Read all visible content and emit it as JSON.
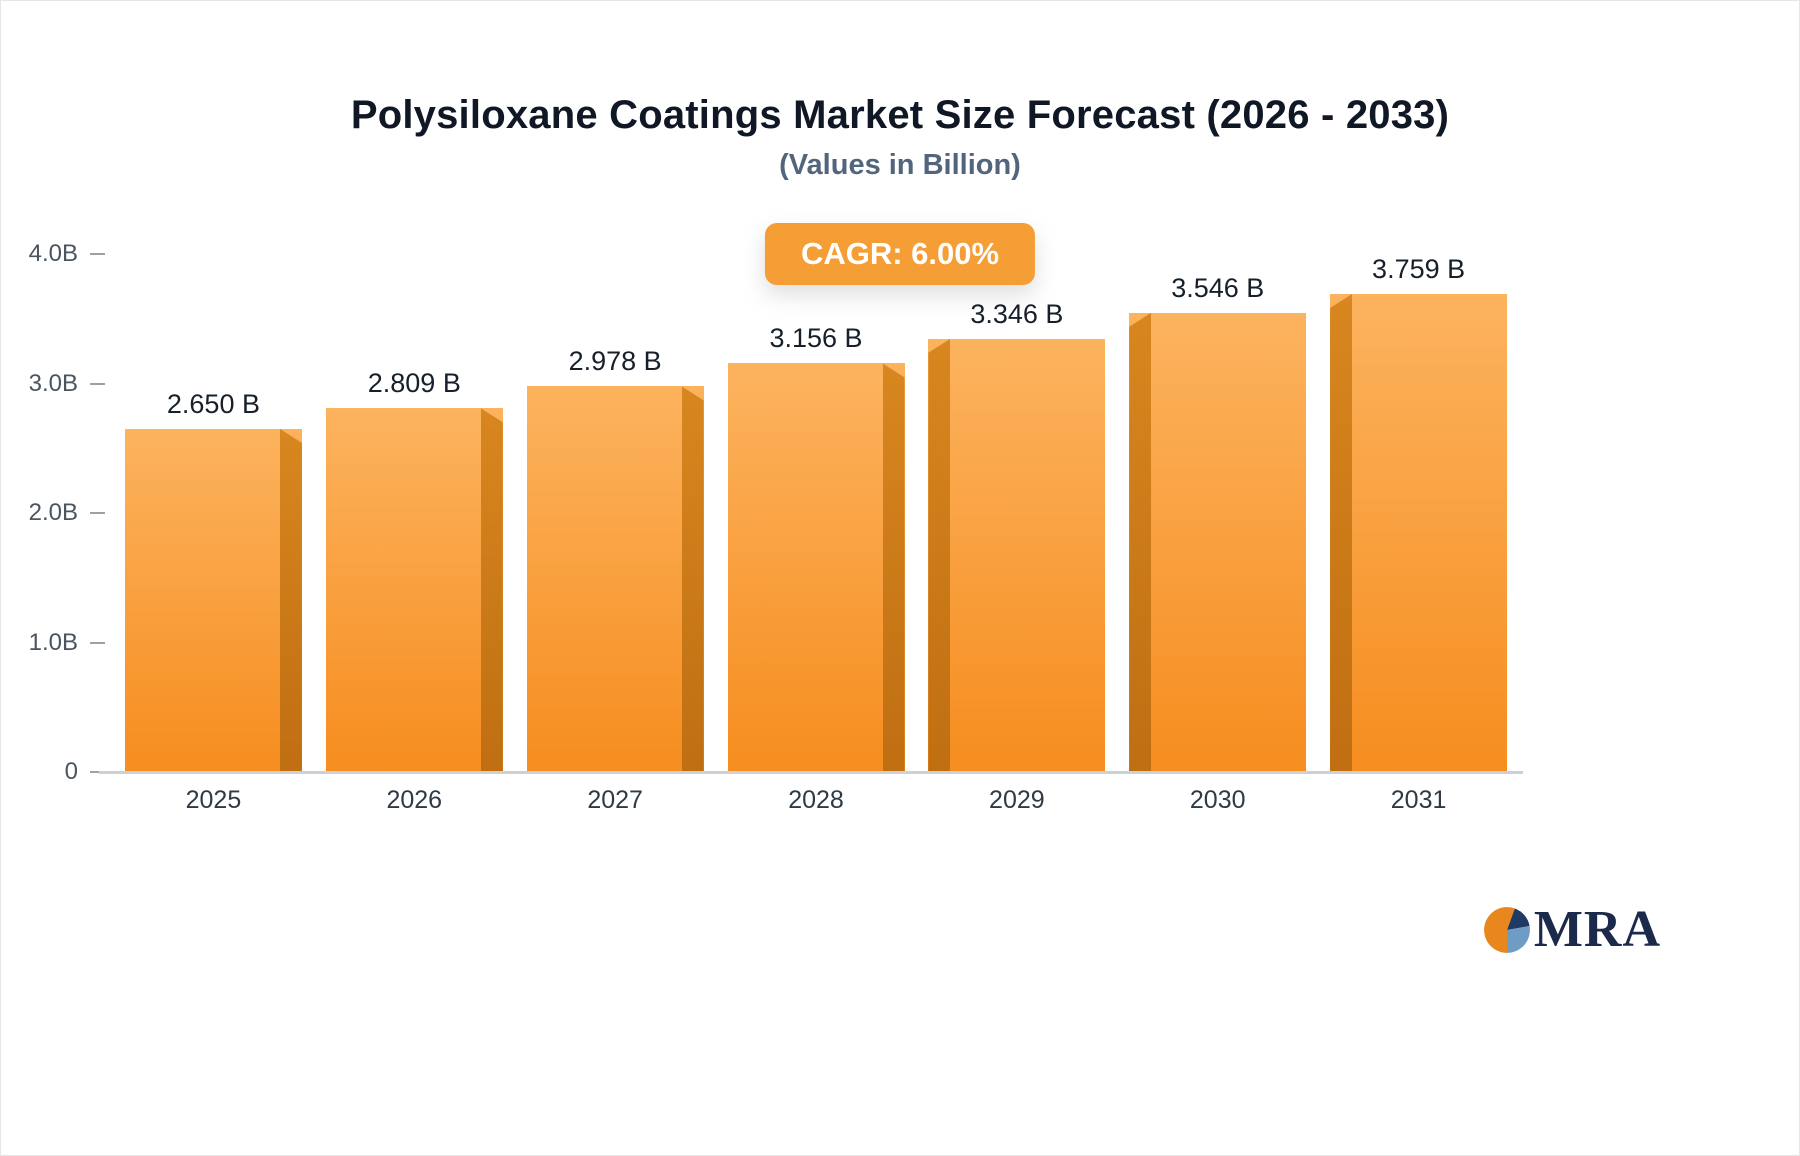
{
  "chart_data": {
    "type": "bar",
    "title": "Polysiloxane Coatings Market Size Forecast (2026 - 2033)",
    "subtitle": "(Values in Billion)",
    "cagr_label": "CAGR: 6.00%",
    "categories": [
      "2025",
      "2026",
      "2027",
      "2028",
      "2029",
      "2030",
      "2031"
    ],
    "values": [
      2.65,
      2.809,
      2.978,
      3.156,
      3.346,
      3.546,
      3.759
    ],
    "value_labels": [
      "2.650 B",
      "2.809 B",
      "2.978 B",
      "3.156 B",
      "3.346 B",
      "3.759 B"
    ],
    "value_labels_full": [
      "2.650 B",
      "2.809 B",
      "2.978 B",
      "3.156 B",
      "3.346 B",
      "3.546 B",
      "3.759 B"
    ],
    "xlabel": "",
    "ylabel": "",
    "ylim": [
      0,
      4
    ],
    "yticks": [
      {
        "label": "0",
        "value": 0
      },
      {
        "label": "1.0B",
        "value": 1
      },
      {
        "label": "2.0B",
        "value": 2
      },
      {
        "label": "3.0B",
        "value": 3
      },
      {
        "label": "4.0B",
        "value": 4
      }
    ],
    "grid": false,
    "legend": null,
    "colors": {
      "bar_top": "#fcb35e",
      "bar_bottom": "#f68d1f",
      "bar_side_dark": "#c97a1a",
      "badge_bg": "#f59e35",
      "title_text": "#101826",
      "subtitle_text": "#53657d"
    }
  },
  "logo": {
    "text": "MRA",
    "icon_colors": {
      "orange": "#e8871e",
      "navy": "#1f3b63",
      "blue": "#6d9dc5"
    }
  }
}
